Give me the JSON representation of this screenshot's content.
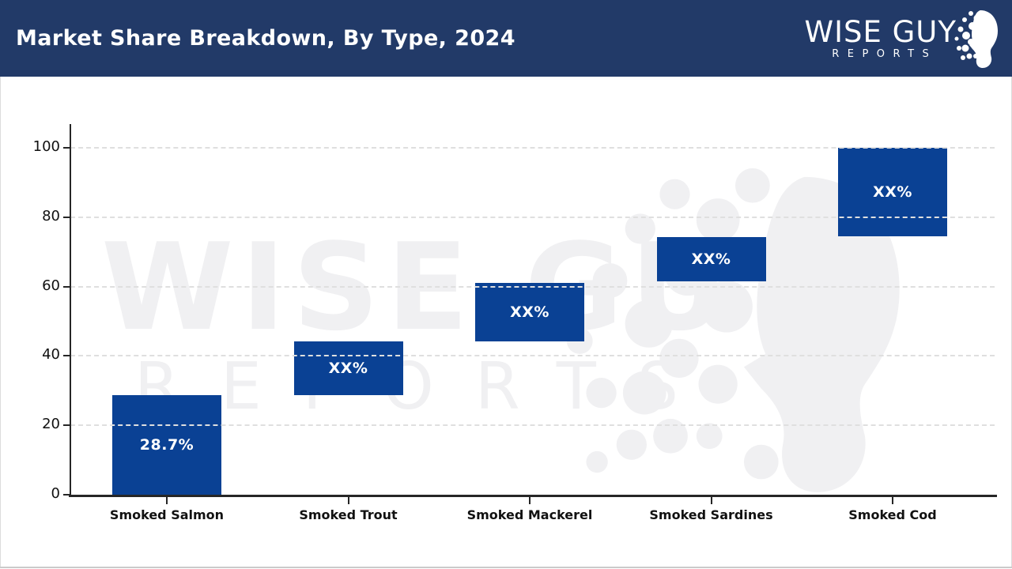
{
  "header": {
    "title": "Market Share Breakdown, By Type, 2024",
    "logo": {
      "line1": "WISE GUY",
      "line2": "REPORTS"
    }
  },
  "watermark": {
    "line1": "WISE GUY",
    "line2": "REPORTS"
  },
  "chart_data": {
    "type": "bar",
    "subtype": "waterfall",
    "title": "Market Share Breakdown, By Type, 2024",
    "categories": [
      "Smoked Salmon",
      "Smoked Trout",
      "Smoked Mackerel",
      "Smoked Sardines",
      "Smoked Cod"
    ],
    "segments": [
      {
        "category": "Smoked Salmon",
        "start": 0,
        "end": 28.7,
        "label": "28.7%"
      },
      {
        "category": "Smoked Trout",
        "start": 28.7,
        "end": 44.2,
        "label": "XX%"
      },
      {
        "category": "Smoked Mackerel",
        "start": 44.3,
        "end": 61.0,
        "label": "XX%"
      },
      {
        "category": "Smoked Sardines",
        "start": 61.4,
        "end": 74.3,
        "label": "XX%"
      },
      {
        "category": "Smoked Cod",
        "start": 74.4,
        "end": 100,
        "label": "XX%"
      }
    ],
    "ylim": [
      0,
      100
    ],
    "yticks": [
      0,
      20,
      40,
      60,
      80,
      100
    ],
    "xlabel": "",
    "ylabel": "",
    "grid": "horizontal-dashed",
    "legend": "none",
    "bar_color": "#0a4194",
    "label_color": "#ffffff",
    "axis_color": "#262626",
    "header_color": "#223a68"
  }
}
